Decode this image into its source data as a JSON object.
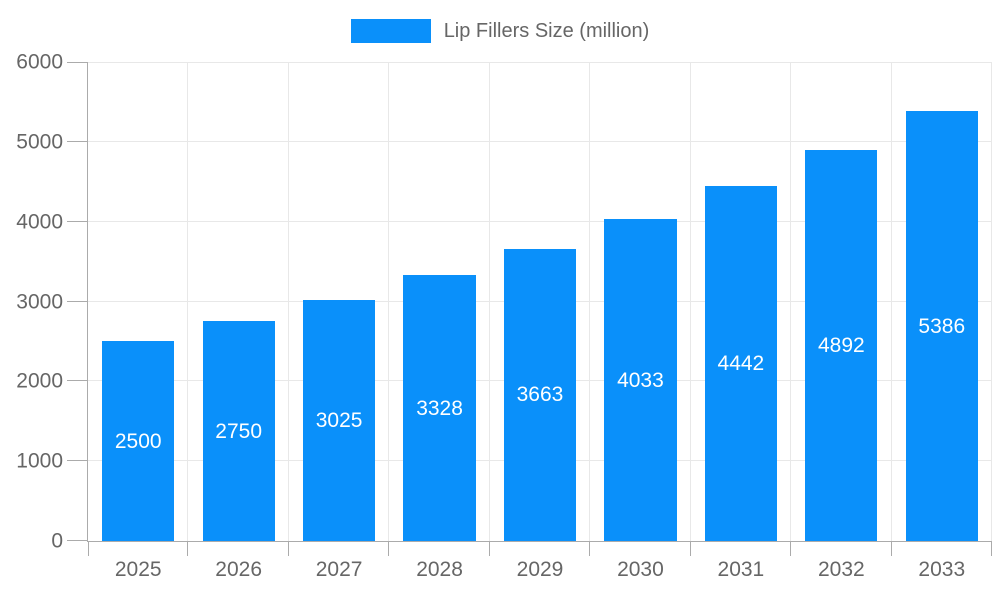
{
  "legend": {
    "label": "Lip Fillers Size (million)"
  },
  "colors": {
    "bar": "#0a90fa",
    "grid": "#e8e8e8",
    "axis": "#ababab",
    "tick_label": "#666666",
    "value_label": "#ffffff"
  },
  "chart_data": {
    "type": "bar",
    "title": "Lip Fillers Size (million)",
    "series_name": "Lip Fillers Size (million)",
    "categories": [
      "2025",
      "2026",
      "2027",
      "2028",
      "2029",
      "2030",
      "2031",
      "2032",
      "2033"
    ],
    "values": [
      2500,
      2750,
      3025,
      3328,
      3663,
      4033,
      4442,
      4892,
      5386
    ],
    "xlabel": "",
    "ylabel": "",
    "ylim": [
      0,
      6000
    ],
    "ytick_step": 1000,
    "yticks": [
      0,
      1000,
      2000,
      3000,
      4000,
      5000,
      6000
    ],
    "grid": true,
    "legend_position": "top",
    "value_labels": "inside-center-white"
  }
}
